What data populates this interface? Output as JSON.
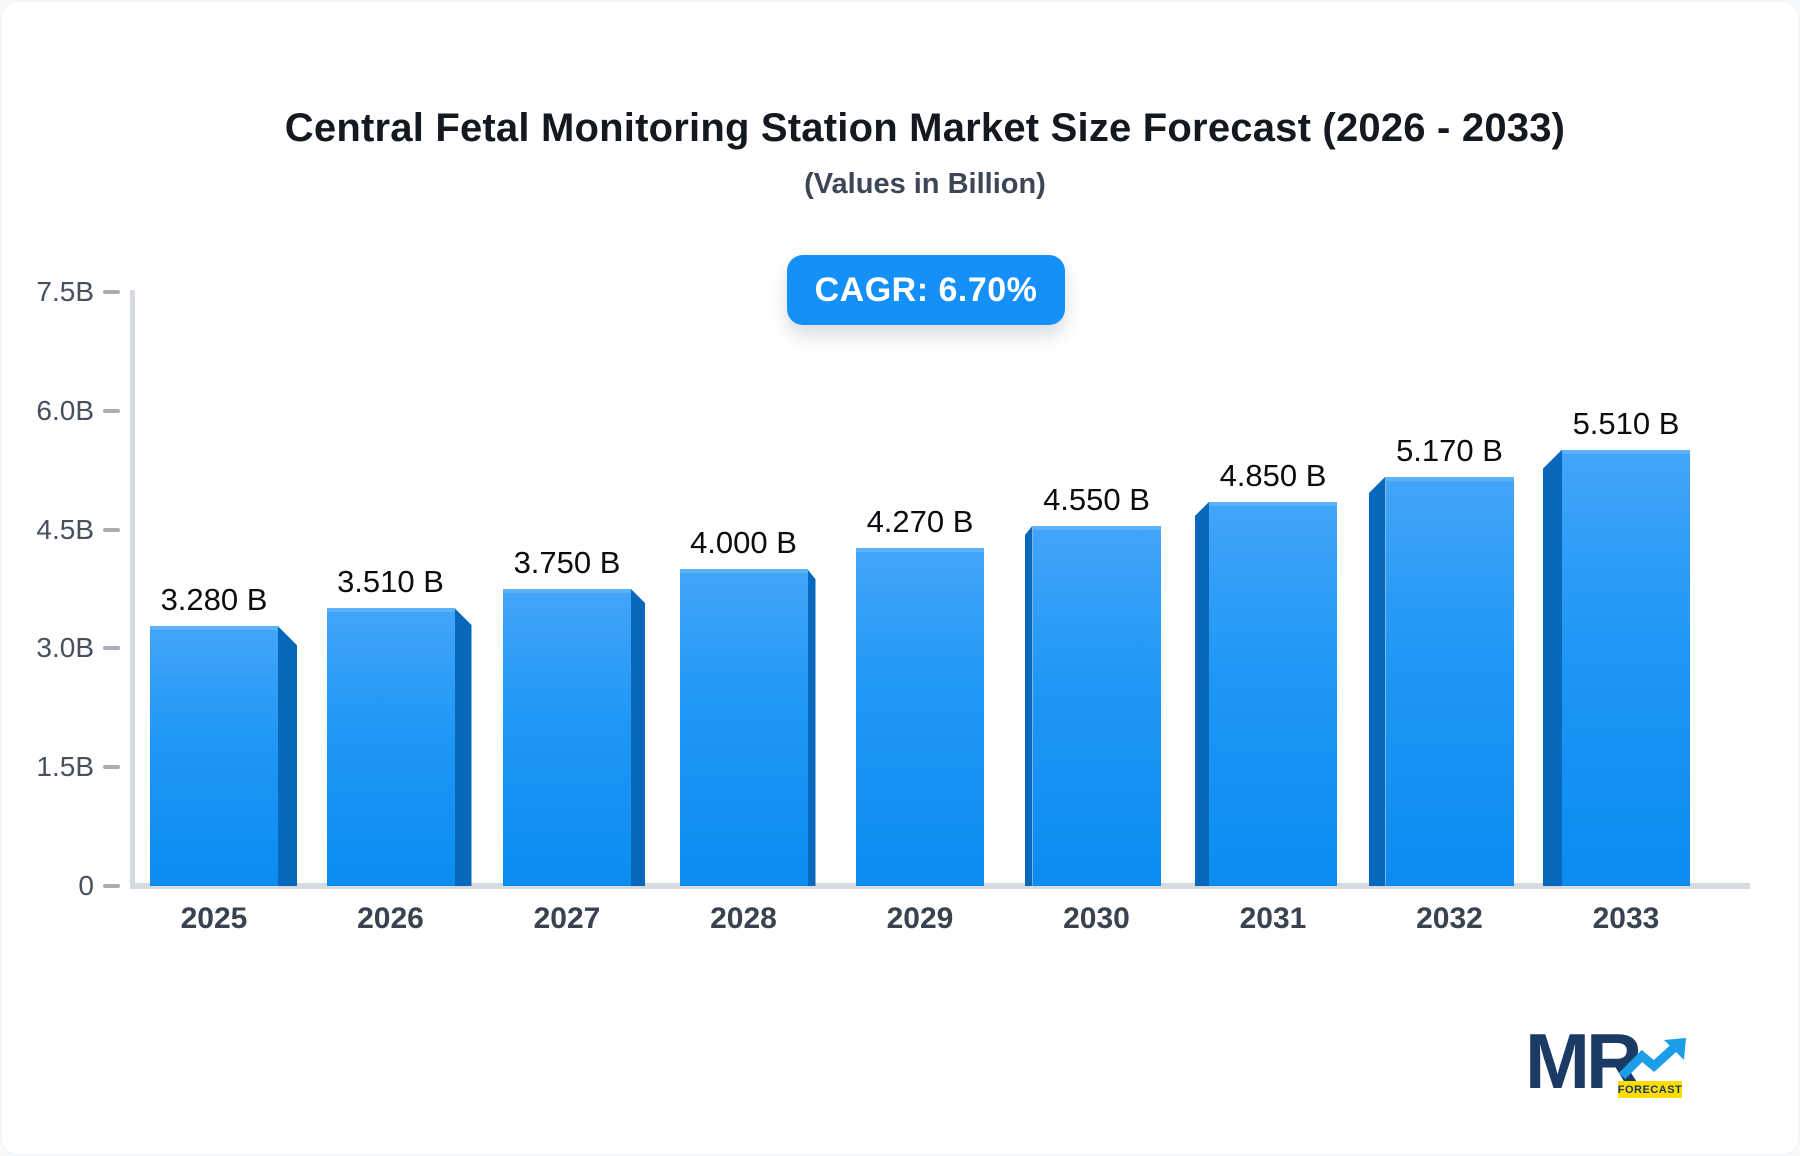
{
  "header": {
    "title": "Central Fetal Monitoring Station Market Size Forecast (2026 - 2033)",
    "subtitle": "(Values in Billion)"
  },
  "badge": {
    "label": "CAGR: 6.70%",
    "bg_color": "#1590f8",
    "text_color": "#ffffff"
  },
  "chart_data": {
    "type": "bar",
    "title": "Central Fetal Monitoring Station Market Size Forecast (2026 - 2033)",
    "subtitle": "(Values in Billion)",
    "cagr": "6.70%",
    "categories": [
      "2025",
      "2026",
      "2027",
      "2028",
      "2029",
      "2030",
      "2031",
      "2032",
      "2033"
    ],
    "values": [
      3.28,
      3.51,
      3.75,
      4.0,
      4.27,
      4.55,
      4.85,
      5.17,
      5.51
    ],
    "value_labels": [
      "3.280 B",
      "3.510 B",
      "3.750 B",
      "4.000 B",
      "4.270 B",
      "4.550 B",
      "4.850 B",
      "5.170 B",
      "5.510 B"
    ],
    "ylim": [
      0,
      7.5
    ],
    "yticks": [
      {
        "label": "7.5B",
        "value": 7.5
      },
      {
        "label": "6.0B",
        "value": 6.0
      },
      {
        "label": "4.5B",
        "value": 4.5
      },
      {
        "label": "3.0B",
        "value": 3.0
      },
      {
        "label": "1.5B",
        "value": 1.5
      },
      {
        "label": "0",
        "value": 0
      }
    ],
    "xlabel": "",
    "ylabel": "",
    "grid": false,
    "legend": false,
    "colors": {
      "bar_face_top": "#41a5f8",
      "bar_face_bottom": "#0b8cf2",
      "bar_side": "#0768bc",
      "bar_top_highlight": "#5bb2f9",
      "axis_line": "#d7dadf",
      "ytick_text": "#46505f",
      "xtick_text": "#39434f",
      "value_text": "#0b0d11"
    }
  },
  "logo": {
    "text": "MR",
    "tagline": "FORECAST",
    "colors": {
      "navy": "#1b3a64",
      "arrow_blue": "#1b9de8",
      "yellow": "#ffdd00"
    }
  }
}
